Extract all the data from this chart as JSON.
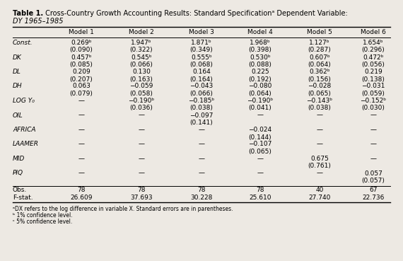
{
  "title_bold": "Table 1.",
  "title_rest": " Cross-Country Growth Accounting Results: Standard Specificationᵃ Dependent Variable:",
  "title_line2": "DY 1965–1985",
  "columns": [
    "",
    "Model 1",
    "Model 2",
    "Model 3",
    "Model 4",
    "Model 5",
    "Model 6"
  ],
  "rows": [
    [
      "Const.",
      "0.269ᵇ",
      "1.947ᵇ",
      "1.871ᵇ",
      "1.968ᵇ",
      "1.127ᵇ",
      "1.654ᵇ"
    ],
    [
      "",
      "(0.090)",
      "(0.322)",
      "(0.349)",
      "(0.398)",
      "(0.287)",
      "(0.296)"
    ],
    [
      "DK",
      "0.457ᵇ",
      "0.545ᵇ",
      "0.555ᵇ",
      "0.530ᵇ",
      "0.607ᵇ",
      "0.472ᵇ"
    ],
    [
      "",
      "(0.085)",
      "(0.066)",
      "(0.068)",
      "(0.088)",
      "(0.064)",
      "(0.056)"
    ],
    [
      "DL",
      "0.209",
      "0.130",
      "0.164",
      "0.225",
      "0.362ᵇ",
      "0.219"
    ],
    [
      "",
      "(0.207)",
      "(0.163)",
      "(0.164)",
      "(0.192)",
      "(0.156)",
      "(0.138)"
    ],
    [
      "DH",
      "0.063",
      "−0.059",
      "−0.043",
      "−0.080",
      "−0.028",
      "−0.031"
    ],
    [
      "",
      "(0.079)",
      "(0.058)",
      "(0.066)",
      "(0.064)",
      "(0.065)",
      "(0.059)"
    ],
    [
      "LOG Y₀",
      "—",
      "−0.190ᵇ",
      "−0.185ᵇ",
      "−0.190ᵇ",
      "−0.143ᵇ",
      "−0.152ᵇ"
    ],
    [
      "",
      "",
      "(0.036)",
      "(0.038)",
      "(0.041)",
      "(0.038)",
      "(0.030)"
    ],
    [
      "OIL",
      "—",
      "—",
      "−0.097",
      "—",
      "—",
      "—"
    ],
    [
      "",
      "",
      "",
      "(0.141)",
      "",
      "",
      ""
    ],
    [
      "AFRICA",
      "—",
      "—",
      "—",
      "−0.024",
      "—",
      "—"
    ],
    [
      "",
      "",
      "",
      "",
      "(0.144)",
      "",
      ""
    ],
    [
      "LAAMER",
      "—",
      "—",
      "—",
      "−0.107",
      "—",
      "—"
    ],
    [
      "",
      "",
      "",
      "",
      "(0.065)",
      "",
      ""
    ],
    [
      "MID",
      "—",
      "—",
      "—",
      "—",
      "0.675",
      "—"
    ],
    [
      "",
      "",
      "",
      "",
      "",
      "(0.761)",
      ""
    ],
    [
      "PIQ",
      "—",
      "—",
      "—",
      "—",
      "—",
      "0.057"
    ],
    [
      "",
      "",
      "",
      "",
      "",
      "",
      "(0.057)"
    ],
    [
      "Obs.",
      "78",
      "78",
      "78",
      "78",
      "40",
      "67"
    ],
    [
      "F-stat.",
      "26.609",
      "37.693",
      "30.228",
      "25.610",
      "27.740",
      "22.736"
    ]
  ],
  "footnotes": [
    "ᵃDX refers to the log difference in variable X. Standard errors are in parentheses.",
    "ᵇ 1% confidence level.",
    "ᶜ 5% confidence level."
  ],
  "italic_var_rows": [
    0,
    2,
    4,
    6,
    8,
    10,
    12,
    14,
    16,
    18
  ],
  "bg_color": "#ede9e3"
}
